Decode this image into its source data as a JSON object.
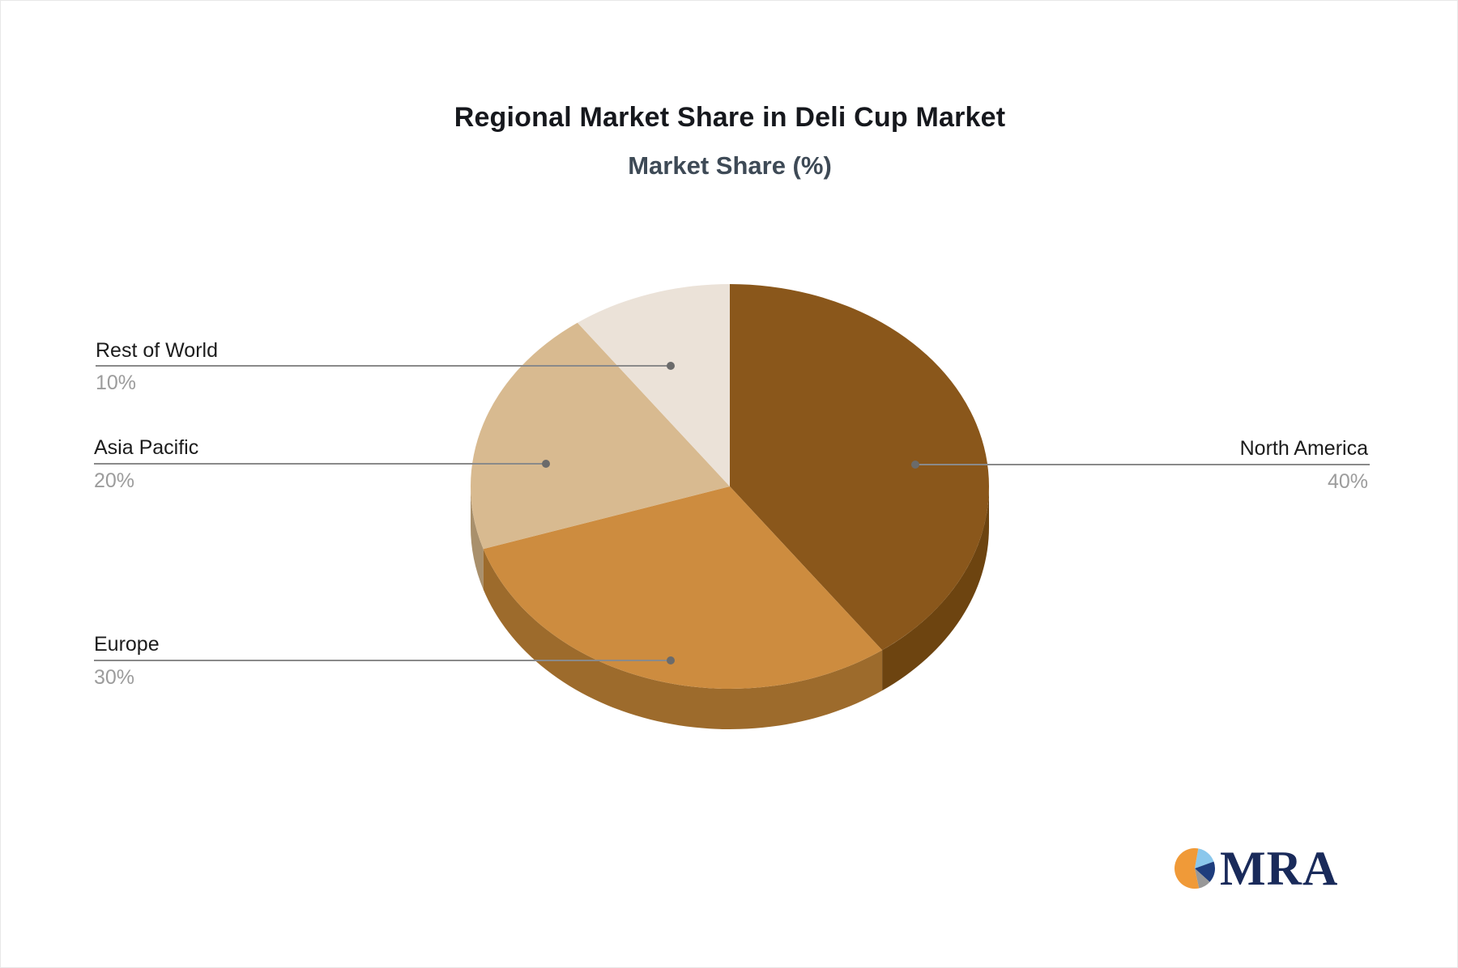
{
  "header": {
    "title": "Regional Market Share in Deli Cup Market",
    "subtitle": "Market Share (%)"
  },
  "chart_data": {
    "type": "pie",
    "title": "Regional Market Share in Deli Cup Market",
    "subtitle": "Market Share (%)",
    "unit": "%",
    "effect": "3d",
    "start_angle_deg": 0,
    "direction": "clockwise",
    "legend": "none",
    "categories": [
      "North America",
      "Europe",
      "Asia Pacific",
      "Rest of World"
    ],
    "values": [
      40,
      30,
      20,
      10
    ],
    "slices": [
      {
        "name": "North America",
        "value": 40,
        "value_label": "40%",
        "color": "#8a571b",
        "side_color": "#6d4410",
        "label_side": "right"
      },
      {
        "name": "Europe",
        "value": 30,
        "value_label": "30%",
        "color": "#cd8c3f",
        "side_color": "#9d6b2c",
        "label_side": "left"
      },
      {
        "name": "Asia Pacific",
        "value": 20,
        "value_label": "20%",
        "color": "#d8ba90",
        "side_color": "#a9906c",
        "label_side": "left"
      },
      {
        "name": "Rest of World",
        "value": 10,
        "value_label": "10%",
        "color": "#ebe2d8",
        "side_color": "#c4b7a6",
        "label_side": "left"
      }
    ],
    "label_name_color": "#1c1c1c",
    "label_value_color": "#9c9c9c",
    "connector_color": "#8a8a8a"
  },
  "logo": {
    "text": "MRA",
    "text_color": "#192a5a",
    "icon_colors": {
      "orange": "#f09a38",
      "light_blue": "#8ac7ec",
      "navy": "#1e3d7d",
      "gray": "#989898"
    }
  }
}
